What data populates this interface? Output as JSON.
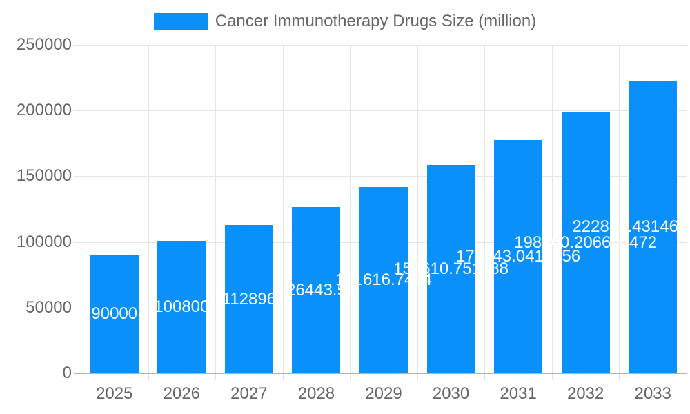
{
  "legend": {
    "label": "Cancer Immunotherapy Drugs Size (million)"
  },
  "chart_data": {
    "type": "bar",
    "title": "Cancer Immunotherapy Drugs Size (million)",
    "series_name": "Cancer Immunotherapy Drugs Size (million)",
    "categories": [
      "2025",
      "2026",
      "2027",
      "2028",
      "2029",
      "2030",
      "2031",
      "2032",
      "2033"
    ],
    "values": [
      90000,
      100800,
      112896,
      126443.52,
      141616.7424,
      158610.751488,
      177643.0416656,
      198960.206665472,
      222835.43146532864
    ],
    "value_labels": [
      "90000",
      "100800",
      "112896",
      "126443.52",
      "141616.7424",
      "158610.751488",
      "177643.0416656",
      "198960.206665472",
      "222835.43146532864"
    ],
    "xlabel": "",
    "ylabel": "",
    "ylim": [
      0,
      250000
    ],
    "yticks": [
      0,
      50000,
      100000,
      150000,
      200000,
      250000
    ],
    "grid": true,
    "legend_position": "top",
    "bar_color": "#0990fa",
    "value_label_color": "#ffffff",
    "axis_text_color": "#666666",
    "gridline_color": "#e5e5e5",
    "axis_line_color": "#b0b0b0"
  }
}
